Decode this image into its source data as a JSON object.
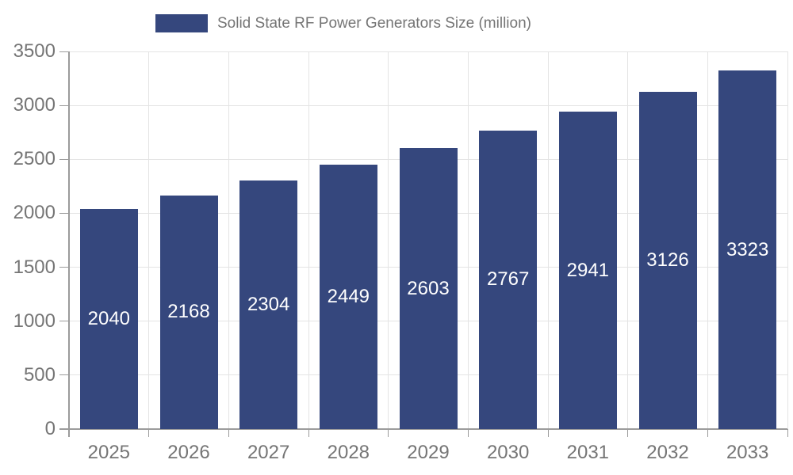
{
  "chart_data": {
    "type": "bar",
    "title": "Solid State RF Power Generators Size (million)",
    "categories": [
      "2025",
      "2026",
      "2027",
      "2028",
      "2029",
      "2030",
      "2031",
      "2032",
      "2033"
    ],
    "values": [
      2040,
      2168,
      2304,
      2449,
      2603,
      2767,
      2941,
      3126,
      3323
    ],
    "series_name": "Solid State RF Power Generators Size (million)",
    "xlabel": "",
    "ylabel": "",
    "ylim": [
      0,
      3500
    ],
    "yticks": [
      0,
      500,
      1000,
      1500,
      2000,
      2500,
      3000,
      3500
    ],
    "grid": true,
    "legend_position": "top-center",
    "value_labels": "centered-white",
    "colors": {
      "bar": "#35477d",
      "grid": "#e4e4e4",
      "axis": "#9b9b9b",
      "tick_label": "#757575",
      "legend_text": "#757575",
      "value_label": "#ffffff",
      "background": "#ffffff"
    }
  }
}
